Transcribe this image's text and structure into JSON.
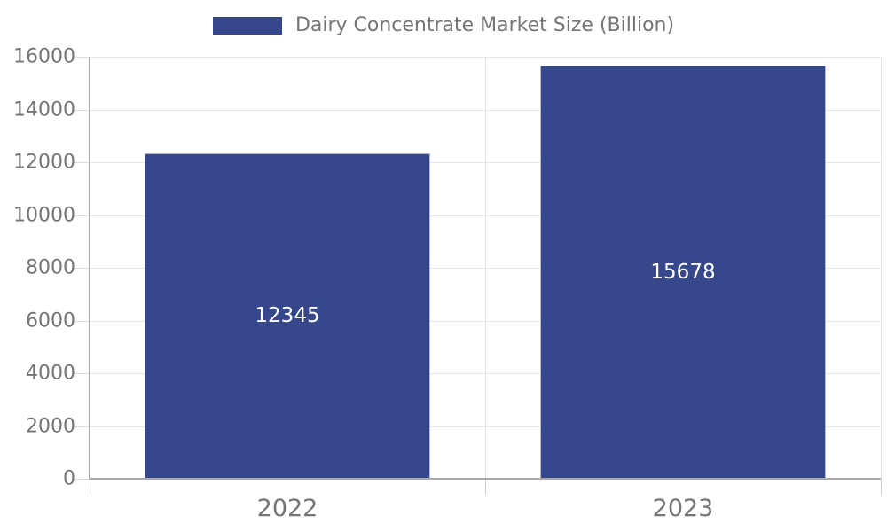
{
  "chart_data": {
    "type": "bar",
    "title": "Dairy Concentrate Market Size (Billion)",
    "legend": "Dairy Concentrate Market Size (Billion)",
    "legend_position": "top-center",
    "categories": [
      "2022",
      "2023"
    ],
    "values": [
      12345,
      15678
    ],
    "value_labels": [
      "12345",
      "15678"
    ],
    "value_label_position": "inside-middle",
    "xlabel": "",
    "ylabel": "",
    "ylim": [
      0,
      16000
    ],
    "yticks": [
      0,
      2000,
      4000,
      6000,
      8000,
      10000,
      12000,
      14000,
      16000
    ],
    "ytick_labels": [
      "0",
      "2000",
      "4000",
      "6000",
      "8000",
      "10000",
      "12000",
      "14000",
      "16000"
    ],
    "grid": true,
    "colors": {
      "bar_fill": "#36488b",
      "bar_border": "#b7bdd1",
      "value_label": "#ffffff",
      "axis_text": "#757575",
      "gridline": "#e6e6e6",
      "axis_line": "#a9a9a9",
      "background": "#ffffff"
    }
  }
}
